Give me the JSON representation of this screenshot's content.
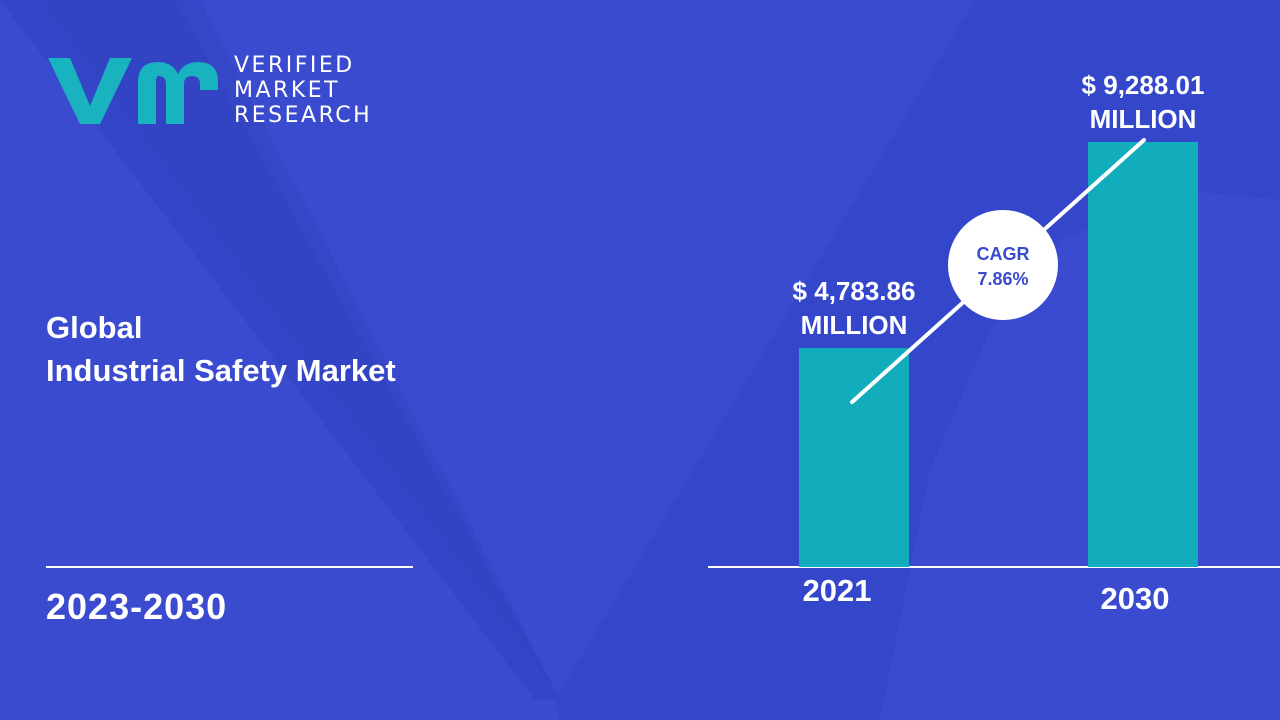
{
  "brand": {
    "lines": [
      "VERIFIED",
      "MARKET",
      "RESEARCH"
    ],
    "mark_color": "#19b3bf"
  },
  "headline": {
    "line1": "Global",
    "line2": "Industrial Safety Market"
  },
  "period": "2023-2030",
  "colors": {
    "background": "#3a4bd0",
    "bar": "#12adbd",
    "text": "#ffffff",
    "cagr_text": "#3a4bd0"
  },
  "chart_data": {
    "type": "bar",
    "categories": [
      "2021",
      "2030"
    ],
    "values": [
      4783.86,
      9288.01
    ],
    "value_labels": [
      [
        "$ 4,783.86",
        "MILLION"
      ],
      [
        "$ 9,288.01",
        "MILLION"
      ]
    ],
    "unit": "MILLION",
    "annotation": {
      "line1": "CAGR",
      "line2": "7.86%"
    },
    "title": "",
    "xlabel": "",
    "ylabel": "",
    "ylim": [
      0,
      9288.01
    ],
    "grid": false,
    "legend": "none"
  }
}
